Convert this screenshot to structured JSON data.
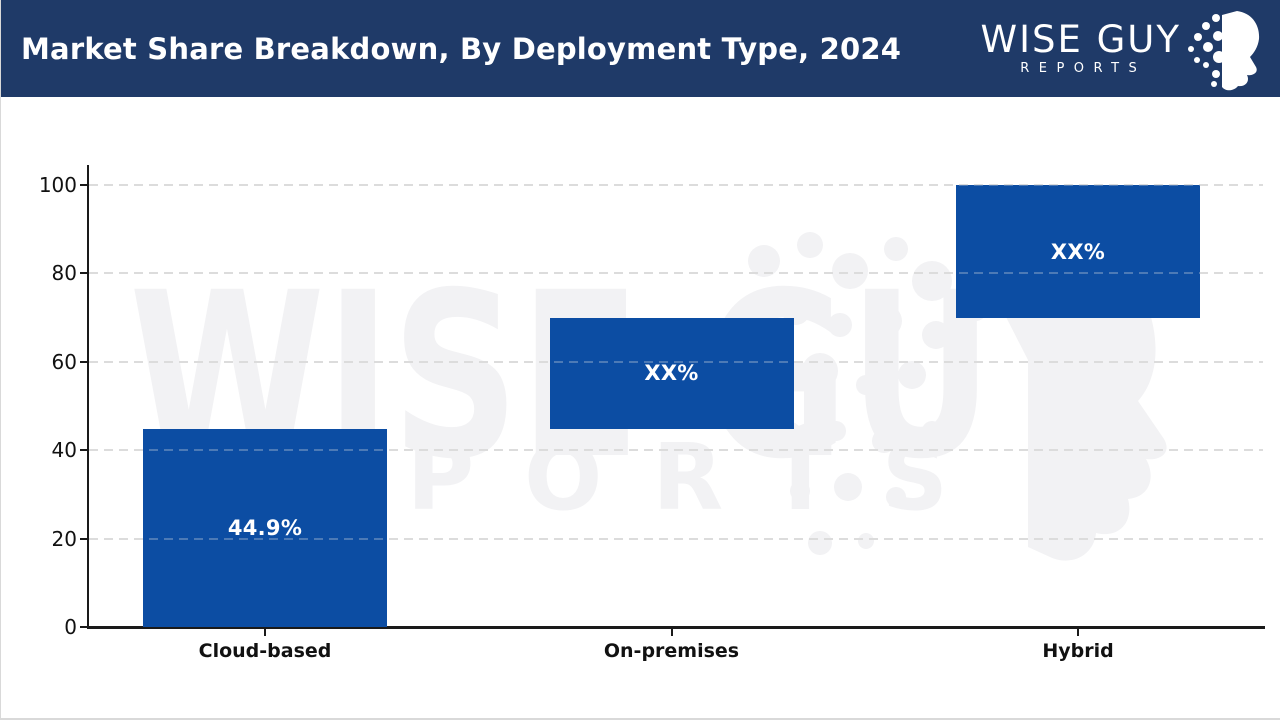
{
  "header": {
    "title": "Market Share Breakdown, By Deployment Type, 2024",
    "logo": {
      "line1": "WISE GUY",
      "line2": "REPORTS"
    }
  },
  "watermark": {
    "line1": "WISE GUY",
    "line2": "REPORTS"
  },
  "chart_data": {
    "type": "bar",
    "variant": "floating-segment-waterfall",
    "title": "Market Share Breakdown, By Deployment Type, 2024",
    "categories": [
      "Cloud-based",
      "On-premises",
      "Hybrid"
    ],
    "series": [
      {
        "name": "Market share (%)",
        "segments": [
          {
            "category": "Cloud-based",
            "start": 0,
            "end": 44.9,
            "label": "44.9%"
          },
          {
            "category": "On-premises",
            "start": 44.9,
            "end": 69.9,
            "label": "XX%"
          },
          {
            "category": "Hybrid",
            "start": 69.9,
            "end": 99.9,
            "label": "XX%"
          }
        ]
      }
    ],
    "xlabel": "",
    "ylabel": "",
    "yticks": [
      0,
      20,
      40,
      60,
      80,
      100
    ],
    "ylim": [
      0,
      104.5
    ],
    "grid": "horizontal-dashed",
    "legend": "none",
    "colors": {
      "bar": "#0c4da3",
      "bar_label": "#ffffff",
      "axis": "#1a1a1a",
      "gridline": "#d9d9d9",
      "tick_label": "#111111"
    }
  },
  "colors": {
    "header_bg": "#1f3a68",
    "header_text": "#ffffff",
    "page_bg": "#ffffff",
    "watermark": "#f2f2f4",
    "border": "#d9d9d9"
  }
}
